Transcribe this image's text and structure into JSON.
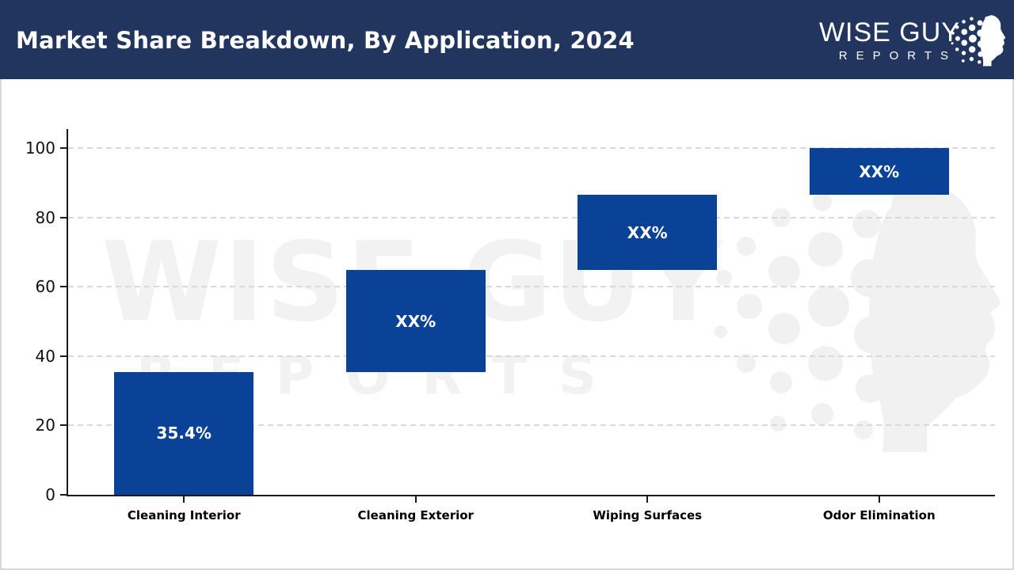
{
  "header": {
    "title": "Market Share Breakdown, By Application, 2024",
    "bg_color": "#21355f",
    "logo": {
      "wordmark": "WISE GUY",
      "subtext": "REPORTS"
    }
  },
  "watermark": {
    "line1": "WISE GUY",
    "line2": "REPORTS"
  },
  "chart_data": {
    "type": "bar",
    "subtype": "waterfall",
    "title": "Market Share Breakdown, By Application, 2024",
    "categories": [
      "Cleaning Interior",
      "Cleaning Exterior",
      "Wiping Surfaces",
      "Odor Elimination"
    ],
    "segments": [
      {
        "category": "Cleaning Interior",
        "start": 0,
        "end": 35.4,
        "label": "35.4%"
      },
      {
        "category": "Cleaning Exterior",
        "start": 35.4,
        "end": 64.8,
        "label": "XX%"
      },
      {
        "category": "Wiping Surfaces",
        "start": 64.8,
        "end": 86.5,
        "label": "XX%"
      },
      {
        "category": "Odor Elimination",
        "start": 86.5,
        "end": 100,
        "label": "XX%"
      }
    ],
    "y_ticks": [
      0,
      20,
      40,
      60,
      80,
      100
    ],
    "ylim": [
      0,
      105.5
    ],
    "xlabel": "",
    "ylabel": "",
    "grid": "horizontal-dashed",
    "legend": "none",
    "bar_color": "#0a4297",
    "bar_label_color": "#ffffff",
    "accent_navy": "#21355f"
  }
}
